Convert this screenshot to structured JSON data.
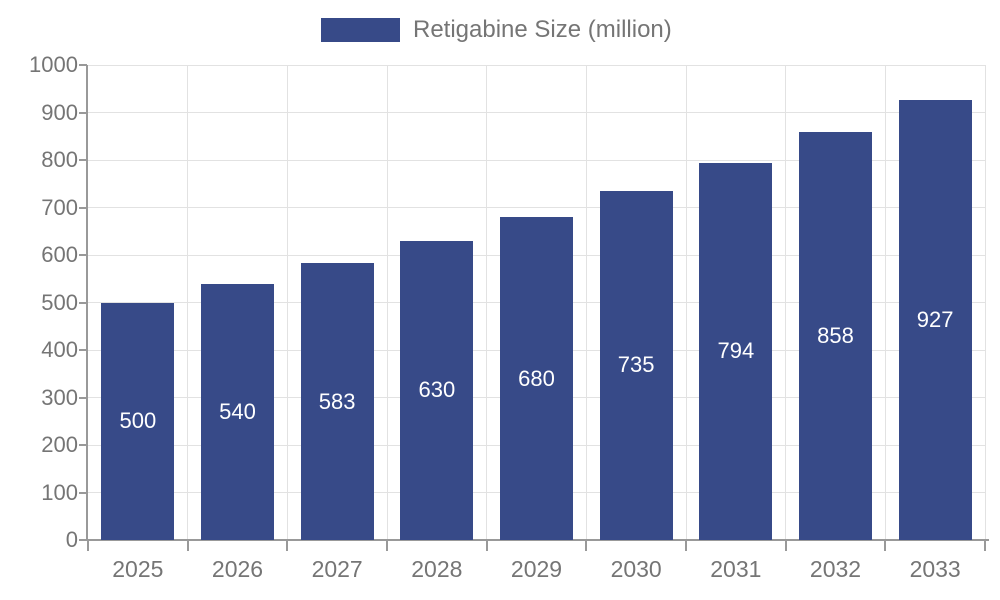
{
  "legend": {
    "label": "Retigabine Size (million)"
  },
  "colors": {
    "bar": "#374a88",
    "bar_label": "#ffffff",
    "axis_label": "#757575",
    "legend_text": "#757575",
    "grid": "#e2e2e2",
    "axis_line": "#999999",
    "background": "#ffffff"
  },
  "chart_data": {
    "type": "bar",
    "title": "Retigabine Size (million)",
    "series": [
      {
        "name": "Retigabine Size (million)",
        "values": [
          500,
          540,
          583,
          630,
          680,
          735,
          794,
          858,
          927
        ]
      }
    ],
    "categories": [
      "2025",
      "2026",
      "2027",
      "2028",
      "2029",
      "2030",
      "2031",
      "2032",
      "2033"
    ],
    "xlabel": "",
    "ylabel": "",
    "ylim": [
      0,
      1000
    ],
    "ytick_interval": 100,
    "ytick_labels": [
      "0",
      "100",
      "200",
      "300",
      "400",
      "500",
      "600",
      "700",
      "800",
      "900",
      "1000"
    ],
    "grid": true,
    "legend_position": "top",
    "value_labels": "inside-center"
  }
}
